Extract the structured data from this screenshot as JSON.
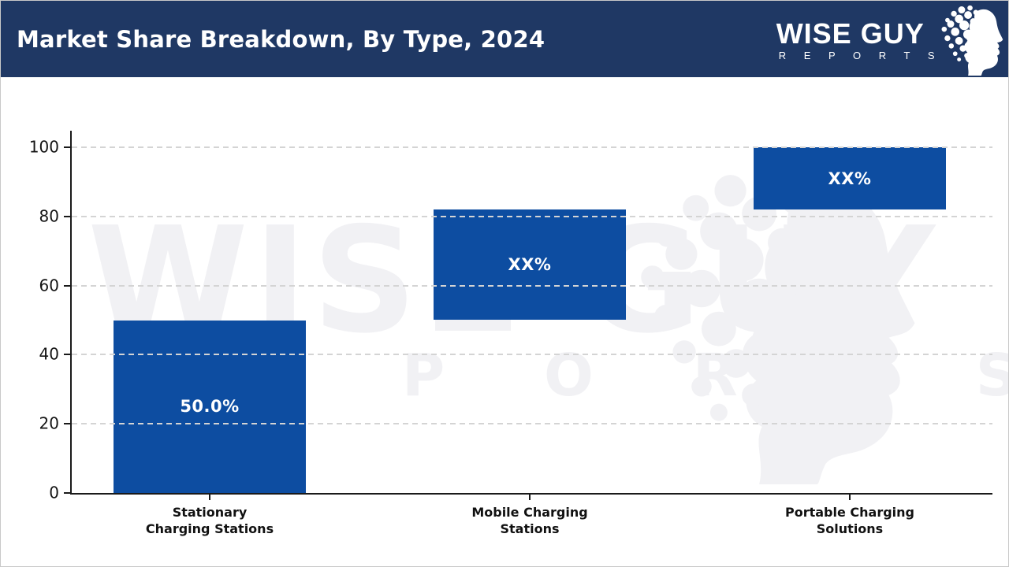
{
  "header": {
    "title": "Market Share Breakdown, By Type, 2024",
    "logo": {
      "name_line": "WISE GUY",
      "reports_line": "R E P O R T S",
      "icon": "dotted-head-profile-icon"
    }
  },
  "watermark": {
    "line1": "WISE GUY",
    "line2": "R E P O R T S",
    "icon": "dotted-head-profile-icon"
  },
  "colors": {
    "header_bg": "#1f3864",
    "bar": "#0d4da1",
    "watermark": "#f1f1f4",
    "grid": "#d4d4d4",
    "axis": "#1a1a1a",
    "label_on_bar": "#ffffff"
  },
  "chart_data": {
    "type": "bar",
    "subtype": "floating-waterfall-percent",
    "title": "Market Share Breakdown, By Type, 2024",
    "categories": [
      "Stationary\nCharging Stations",
      "Mobile Charging\nStations",
      "Portable Charging\nSolutions"
    ],
    "segments": [
      {
        "category": "Stationary Charging Stations",
        "start": 0,
        "end": 50,
        "label": "50.0%"
      },
      {
        "category": "Mobile Charging Stations",
        "start": 50,
        "end": 82,
        "label": "XX%"
      },
      {
        "category": "Portable Charging Solutions",
        "start": 82,
        "end": 100,
        "label": "XX%"
      }
    ],
    "xlabel": "",
    "ylabel": "",
    "ylim": [
      0,
      100
    ],
    "yticks": [
      0,
      20,
      40,
      60,
      80,
      100
    ],
    "grid": "horizontal-dashed-over-bars",
    "legend": "none",
    "bar_color": "#0d4da1"
  }
}
